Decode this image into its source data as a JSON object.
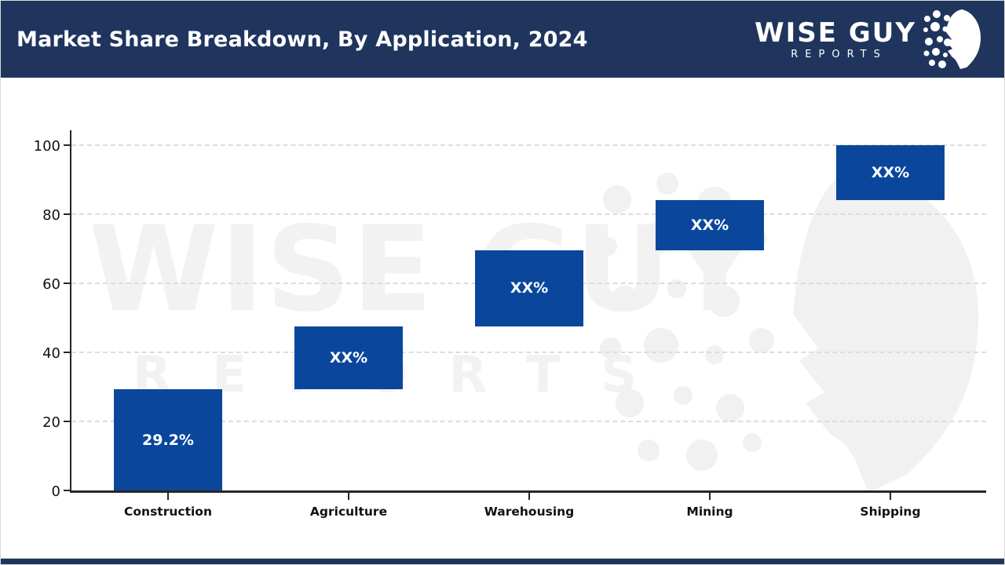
{
  "header": {
    "title": "Market Share Breakdown, By Application, 2024",
    "logo": {
      "line1": "WISE GUY",
      "line2": "REPORTS"
    }
  },
  "watermark": {
    "line1": "WISE GUY",
    "line2": "REPORTS"
  },
  "chart_data": {
    "type": "bar",
    "subtype": "waterfall",
    "title": "Market Share Breakdown, By Application, 2024",
    "categories": [
      "Construction",
      "Agriculture",
      "Warehousing",
      "Mining",
      "Shipping"
    ],
    "segments": [
      {
        "category": "Construction",
        "start": 0,
        "end": 29.2,
        "label": "29.2%"
      },
      {
        "category": "Agriculture",
        "start": 29.2,
        "end": 47.5,
        "label": "XX%"
      },
      {
        "category": "Warehousing",
        "start": 47.5,
        "end": 69.5,
        "label": "XX%"
      },
      {
        "category": "Mining",
        "start": 69.5,
        "end": 84.0,
        "label": "XX%"
      },
      {
        "category": "Shipping",
        "start": 84.0,
        "end": 100.0,
        "label": "XX%"
      }
    ],
    "ylim": [
      0,
      100
    ],
    "yticks": [
      0,
      20,
      40,
      60,
      80,
      100
    ],
    "xlabel": "",
    "ylabel": "",
    "grid": "horizontal-dashed",
    "legend": "none"
  },
  "colors": {
    "header_bg": "#1f355e",
    "footer_bg": "#1f355e",
    "bar": "#0a479c",
    "bar_label": "#ffffff",
    "grid": "#dcdcdc",
    "axis": "#262626",
    "watermark": "#f2f2f2"
  }
}
